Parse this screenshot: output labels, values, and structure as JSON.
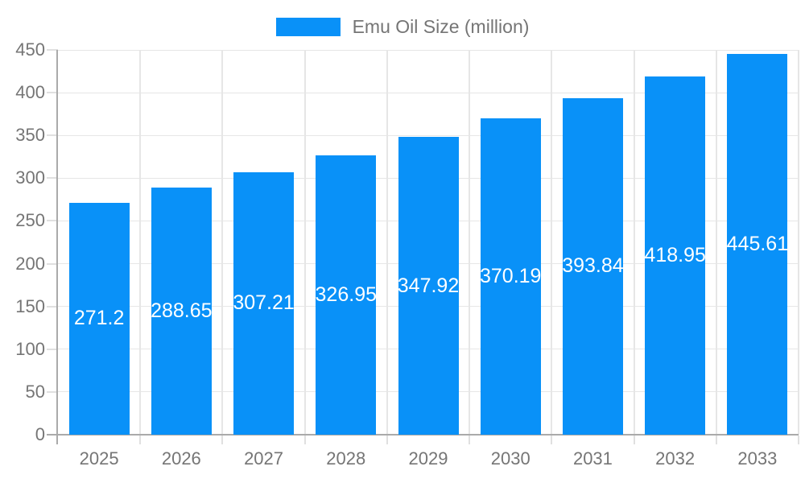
{
  "chart_data": {
    "type": "bar",
    "title": "Emu Oil Size (million)",
    "legend_position": "top",
    "categories": [
      "2025",
      "2026",
      "2027",
      "2028",
      "2029",
      "2030",
      "2031",
      "2032",
      "2033"
    ],
    "values": [
      271.2,
      288.65,
      307.21,
      326.95,
      347.92,
      370.19,
      393.84,
      418.95,
      445.61
    ],
    "value_labels": [
      "271.2",
      "288.65",
      "307.21",
      "326.95",
      "347.92",
      "370.19",
      "393.84",
      "418.95",
      "445.61"
    ],
    "xlabel": "",
    "ylabel": "",
    "ylim": [
      0,
      450
    ],
    "y_tick_step": 50,
    "y_tick_labels": [
      "0",
      "50",
      "100",
      "150",
      "200",
      "250",
      "300",
      "350",
      "400",
      "450"
    ],
    "grid": true,
    "colors": {
      "bar": "#0991f8",
      "value_label": "#ffffff",
      "axis_text": "#757575",
      "grid_line": "#e6e6e6",
      "axis_line": "#aaaaaa",
      "tick_line": "#e0e0e0",
      "background": "#ffffff"
    }
  }
}
